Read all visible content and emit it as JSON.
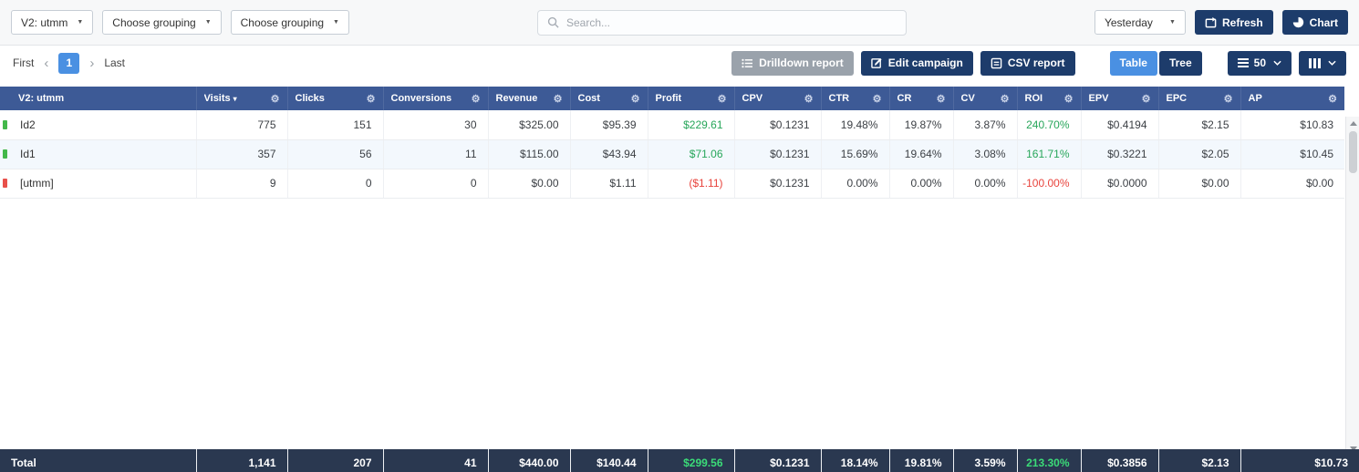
{
  "toolbar": {
    "campaign_filter": {
      "value": "V2: utmm"
    },
    "grouping_1": {
      "value": "Choose grouping"
    },
    "grouping_2": {
      "value": "Choose grouping"
    },
    "search": {
      "placeholder": "Search..."
    },
    "date_range": {
      "value": "Yesterday"
    },
    "refresh_button": "Refresh",
    "chart_button": "Chart"
  },
  "pagination": {
    "first_label": "First",
    "current_page": "1",
    "last_label": "Last"
  },
  "actions": {
    "drilldown_button": "Drilldown report",
    "edit_campaign_button": "Edit campaign",
    "csv_button": "CSV report",
    "table_toggle": "Table",
    "tree_toggle": "Tree",
    "rows_per_page": "50"
  },
  "icons": {
    "gear": "⚙",
    "caret_down": "▼",
    "sort_desc": "▾",
    "chevron_left": "‹",
    "chevron_right": "›"
  },
  "colors": {
    "accent_blue": "#4a90e2",
    "navy_button": "#1d3c6b",
    "header_blue": "#3d5a96",
    "total_row_navy": "#2a3850",
    "positive_green": "#27a65a",
    "negative_red": "#e8433c",
    "status_green": "#43b84a",
    "status_red": "#e8504a"
  },
  "table": {
    "name_column_header": "V2: utmm",
    "sorted_column": "Visits",
    "columns": [
      "Visits",
      "Clicks",
      "Conversions",
      "Revenue",
      "Cost",
      "Profit",
      "CPV",
      "CTR",
      "CR",
      "CV",
      "ROI",
      "EPV",
      "EPC",
      "AP"
    ],
    "rows": [
      {
        "status": "green",
        "name": "Id2",
        "cells": [
          "775",
          "151",
          "30",
          "$325.00",
          "$95.39",
          "$229.61",
          "$0.1231",
          "19.48%",
          "19.87%",
          "3.87%",
          "240.70%",
          "$0.4194",
          "$2.15",
          "$10.83"
        ],
        "cell_colors": {
          "5": "pos",
          "10": "pos"
        }
      },
      {
        "status": "green",
        "name": "Id1",
        "cells": [
          "357",
          "56",
          "11",
          "$115.00",
          "$43.94",
          "$71.06",
          "$0.1231",
          "15.69%",
          "19.64%",
          "3.08%",
          "161.71%",
          "$0.3221",
          "$2.05",
          "$10.45"
        ],
        "cell_colors": {
          "5": "pos",
          "10": "pos"
        }
      },
      {
        "status": "red",
        "name": "[utmm]",
        "cells": [
          "9",
          "0",
          "0",
          "$0.00",
          "$1.11",
          "($1.11)",
          "$0.1231",
          "0.00%",
          "0.00%",
          "0.00%",
          "-100.00%",
          "$0.0000",
          "$0.00",
          "$0.00"
        ],
        "cell_colors": {
          "5": "neg",
          "10": "neg"
        }
      }
    ],
    "total": {
      "label": "Total",
      "cells": [
        "1,141",
        "207",
        "41",
        "$440.00",
        "$140.44",
        "$299.56",
        "$0.1231",
        "18.14%",
        "19.81%",
        "3.59%",
        "213.30%",
        "$0.3856",
        "$2.13",
        "$10.73"
      ],
      "cell_colors": {
        "5": "pos",
        "10": "pos"
      }
    }
  }
}
